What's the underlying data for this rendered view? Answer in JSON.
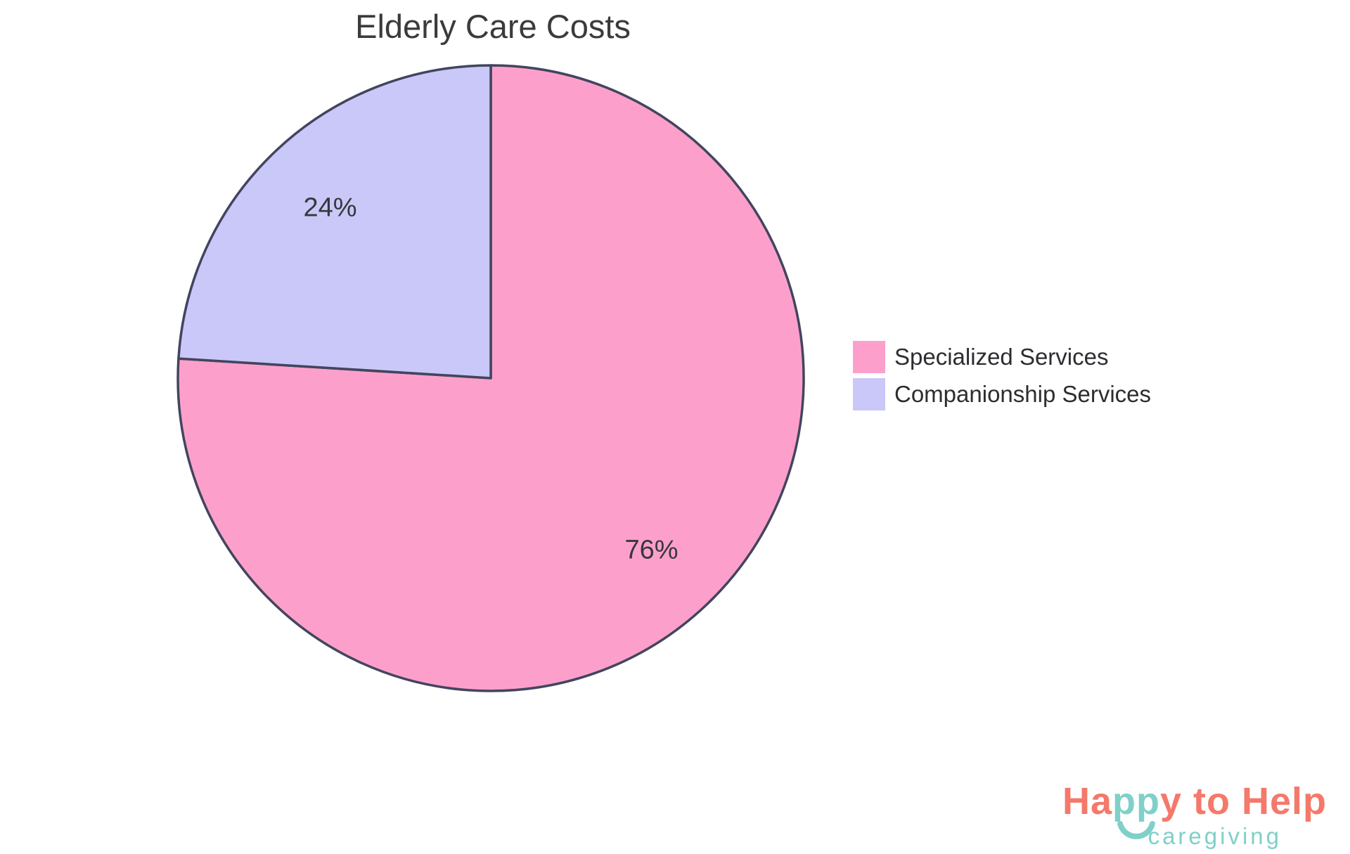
{
  "chart_data": {
    "type": "pie",
    "title": "Elderly Care Costs",
    "slices": [
      {
        "label": "Specialized Services",
        "value": 76,
        "percent_label": "76%",
        "color": "#FCA0CB"
      },
      {
        "label": "Companionship Services",
        "value": 24,
        "percent_label": "24%",
        "color": "#CAC8F8"
      }
    ],
    "start_angle_deg": 0,
    "direction": "clockwise",
    "stroke_color": "#42455F",
    "stroke_width": 3.5,
    "label_color": "#37373C",
    "legend_position": "right",
    "background": "#FFFFFF"
  },
  "logo": {
    "part1": "Ha",
    "part2": "pp",
    "part3": "y to Help",
    "tagline": "caregiving",
    "coral": "#F4796B",
    "teal": "#7FD0C9"
  }
}
